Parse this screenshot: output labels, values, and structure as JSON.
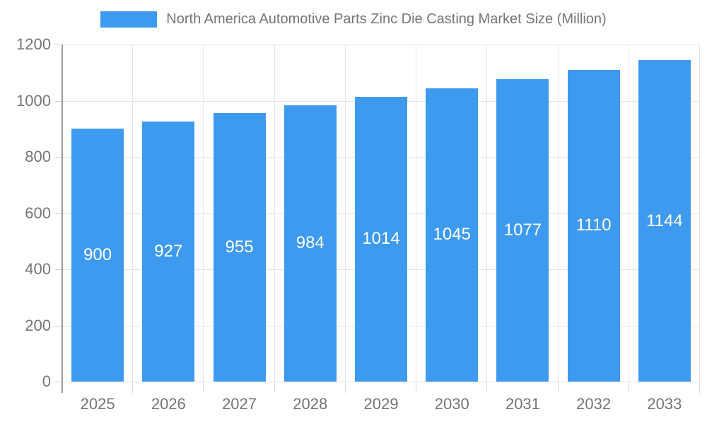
{
  "chart_data": {
    "type": "bar",
    "title": "North America Automotive Parts Zinc Die Casting Market Size (Million)",
    "legend_entries": [
      "North America Automotive Parts Zinc Die Casting Market Size (Million)"
    ],
    "legend_position": "top",
    "categories": [
      "2025",
      "2026",
      "2027",
      "2028",
      "2029",
      "2030",
      "2031",
      "2032",
      "2033"
    ],
    "values": [
      900,
      927,
      955,
      984,
      1014,
      1045,
      1077,
      1110,
      1144
    ],
    "value_labels": [
      "900",
      "927",
      "955",
      "984",
      "1014",
      "1045",
      "1077",
      "1110",
      "1144"
    ],
    "xlabel": "",
    "ylabel": "",
    "ylim": [
      0,
      1200
    ],
    "ytick_step": 200,
    "ytick_labels": [
      "0",
      "200",
      "400",
      "600",
      "800",
      "1000",
      "1200"
    ],
    "grid": true,
    "colors": {
      "bar_fill": "#3E9AEF",
      "value_label_text": "#FFFFFF",
      "axis_text": "#757575",
      "title_text": "#757575",
      "gridline": "#E6E6E6",
      "axis_line": "#999999",
      "background": "#FFFFFF"
    }
  }
}
